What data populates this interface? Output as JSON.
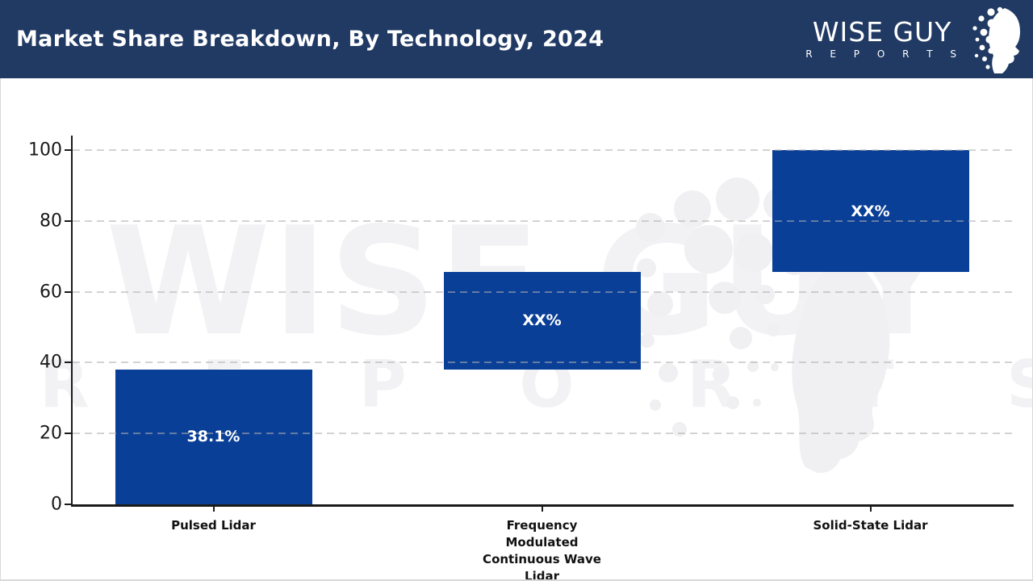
{
  "header": {
    "title": "Market Share Breakdown, By Technology, 2024",
    "logo": {
      "line1": "WISE GUY",
      "line2": "R E P O R T S",
      "face_icon": "dotted-profile-face"
    }
  },
  "watermark": {
    "line1": "WISE GUY",
    "line2": "R E P O R T S",
    "face_icon": "dotted-profile-face"
  },
  "colors": {
    "header_bg": "#213a64",
    "bar": "#0a3f97",
    "bar_label_text": "#ffffff",
    "grid": "#d2d2d2",
    "axis": "#1a1a1a",
    "watermark": "#f2f2f4",
    "card_border": "#d9d9d9",
    "title_text": "#ffffff"
  },
  "chart_data": {
    "type": "bar",
    "subtype": "waterfall-floating-bars",
    "title": "Market Share Breakdown, By Technology, 2024",
    "xlabel": "",
    "ylabel": "",
    "ylim": [
      0,
      100
    ],
    "yticks": [
      0,
      20,
      40,
      60,
      80,
      100
    ],
    "grid": "horizontal dashed, drawn above bars",
    "legend": "none",
    "categories": [
      "Pulsed Lidar",
      "Frequency Modulated Continuous Wave Lidar",
      "Solid-State Lidar"
    ],
    "category_lines": [
      [
        "Pulsed Lidar"
      ],
      [
        "Frequency",
        "Modulated",
        "Continuous Wave",
        "Lidar"
      ],
      [
        "Solid-State Lidar"
      ]
    ],
    "segments": [
      {
        "category": "Pulsed Lidar",
        "start": 0,
        "end": 38.1,
        "label": "38.1%"
      },
      {
        "category": "Frequency Modulated Continuous Wave Lidar",
        "start": 38.1,
        "end": 65.6,
        "label": "XX%"
      },
      {
        "category": "Solid-State Lidar",
        "start": 65.6,
        "end": 100,
        "label": "XX%"
      }
    ]
  }
}
